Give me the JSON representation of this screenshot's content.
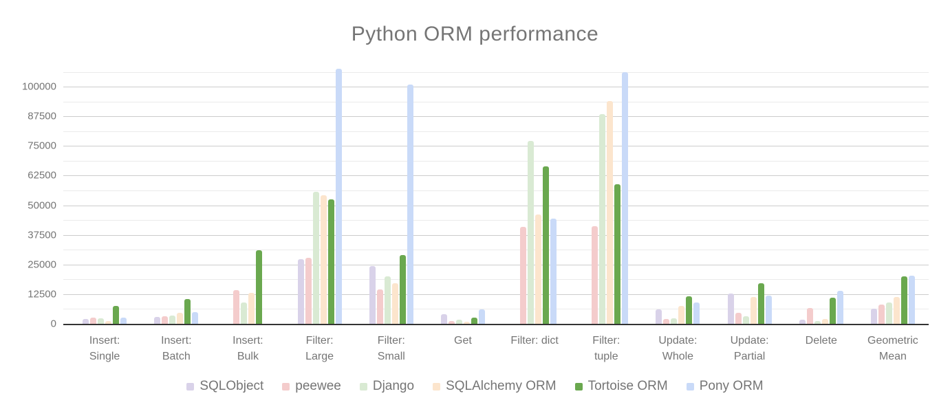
{
  "chart_data": {
    "type": "bar",
    "title": "Python ORM performance",
    "xlabel": "",
    "ylabel": "",
    "categories": [
      "Insert: Single",
      "Insert: Batch",
      "Insert: Bulk",
      "Filter: Large",
      "Filter: Small",
      "Get",
      "Filter: dict",
      "Filter: tuple",
      "Update: Whole",
      "Update: Partial",
      "Delete",
      "Geometric Mean"
    ],
    "category_labels": [
      "Insert:\nSingle",
      "Insert:\nBatch",
      "Insert:\nBulk",
      "Filter:\nLarge",
      "Filter:\nSmall",
      "Get",
      "Filter: dict",
      "Filter:\ntuple",
      "Update:\nWhole",
      "Update:\nPartial",
      "Delete",
      "Geometric\nMean"
    ],
    "series": [
      {
        "name": "SQLObject",
        "color": "#d9d2e9",
        "values": [
          2000,
          2900,
          0,
          27400,
          24300,
          4100,
          0,
          0,
          6200,
          12800,
          1800,
          6300
        ]
      },
      {
        "name": "peewee",
        "color": "#f4cccc",
        "values": [
          2600,
          3200,
          14300,
          27700,
          14500,
          1200,
          41000,
          41300,
          1900,
          4700,
          6600,
          8200
        ]
      },
      {
        "name": "Django",
        "color": "#d9ead3",
        "values": [
          2400,
          3400,
          9000,
          55600,
          20100,
          1700,
          77200,
          88500,
          2300,
          3100,
          1300,
          8900
        ]
      },
      {
        "name": "SQLAlchemy ORM",
        "color": "#fce5cd",
        "values": [
          1200,
          4700,
          13000,
          54300,
          17200,
          1000,
          46000,
          94000,
          7600,
          11400,
          2100,
          11400
        ]
      },
      {
        "name": "Tortoise ORM",
        "color": "#6aa84f",
        "values": [
          7500,
          10500,
          31000,
          52400,
          28900,
          2700,
          66500,
          59000,
          11600,
          17200,
          10900,
          20100
        ]
      },
      {
        "name": "Pony ORM",
        "color": "#c9daf8",
        "values": [
          2500,
          5000,
          0,
          107500,
          100800,
          6000,
          44500,
          106000,
          8900,
          12000,
          13800,
          20400
        ]
      }
    ],
    "ylim": [
      0,
      109000
    ],
    "yticks": [
      0,
      12500,
      25000,
      37500,
      50000,
      62500,
      75000,
      87500,
      100000
    ],
    "y_minor_step": 6250,
    "grid": true,
    "legend_position": "bottom",
    "colors": {
      "background": "#ffffff",
      "text": "#757575",
      "axis_line": "#333333",
      "major_grid": "#cccccc",
      "minor_grid": "#ebebeb"
    }
  }
}
